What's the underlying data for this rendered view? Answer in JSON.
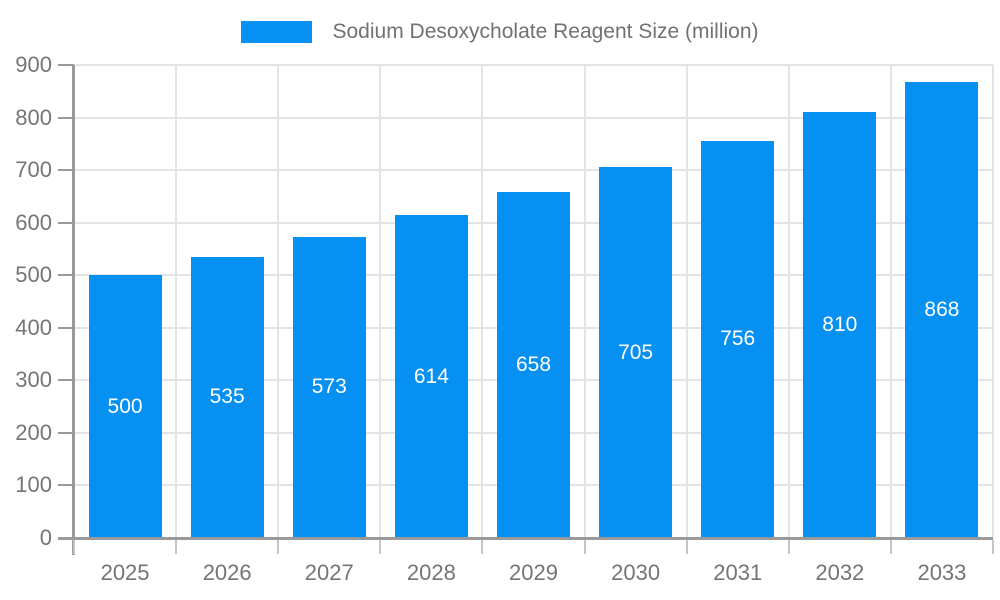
{
  "legend": {
    "label": "Sodium Desoxycholate Reagent Size (million)"
  },
  "chart_data": {
    "type": "bar",
    "title": "Sodium Desoxycholate Reagent Size (million)",
    "series_name": "Sodium Desoxycholate Reagent Size (million)",
    "categories": [
      "2025",
      "2026",
      "2027",
      "2028",
      "2029",
      "2030",
      "2031",
      "2032",
      "2033"
    ],
    "values": [
      500,
      535,
      573,
      614,
      658,
      705,
      756,
      810,
      868
    ],
    "value_labels": [
      "500",
      "535",
      "573",
      "614",
      "658",
      "705",
      "756",
      "810",
      "868"
    ],
    "xlabel": "",
    "ylabel": "",
    "ylim": [
      0,
      900
    ],
    "ytick_step": 100,
    "yticks": [
      0,
      100,
      200,
      300,
      400,
      500,
      600,
      700,
      800,
      900
    ],
    "grid": true,
    "legend_position": "top-center",
    "colors": {
      "bar": "#0690f2",
      "grid": "#e4e4e4",
      "axis": "#9a9a9a",
      "tick": "#c6c6c6",
      "label": "#757575",
      "value_label": "#ffffff",
      "background": "#ffffff"
    }
  }
}
